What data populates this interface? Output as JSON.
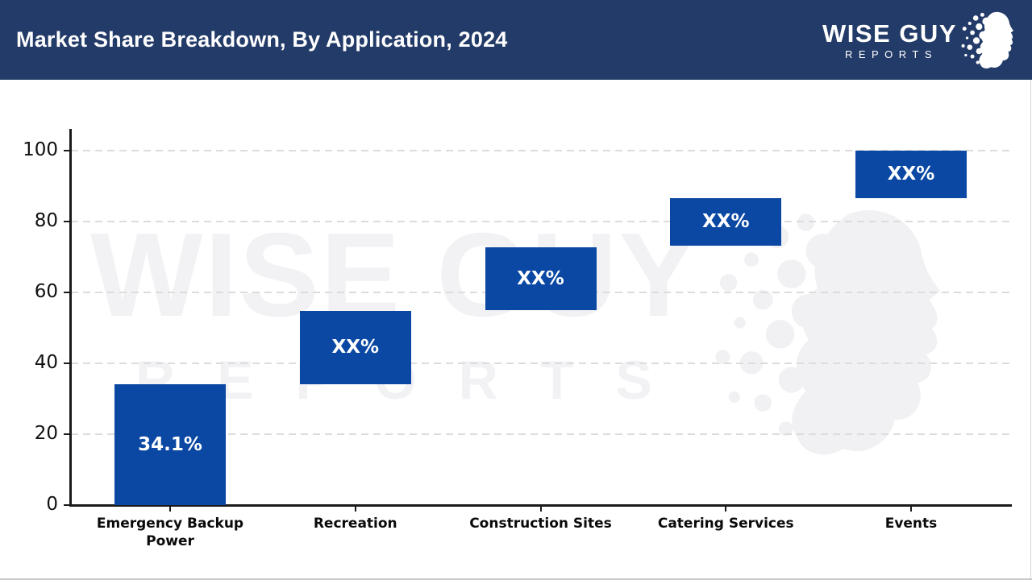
{
  "header": {
    "title": "Market Share Breakdown, By Application, 2024",
    "bg_color": "#233B68",
    "logo": {
      "line1": "WISE GUY",
      "line2": "REPORTS"
    }
  },
  "watermark": {
    "line1": "WISE GUY",
    "line2": "REPORTS"
  },
  "chart_data": {
    "type": "bar",
    "subtype": "waterfall",
    "title": "Market Share Breakdown, By Application, 2024",
    "categories": [
      "Emergency Backup Power",
      "Recreation",
      "Construction Sites",
      "Catering Services",
      "Events"
    ],
    "segments": [
      {
        "category": "Emergency Backup Power",
        "start": 0,
        "end": 34.1,
        "value": 34.1,
        "label": "34.1%"
      },
      {
        "category": "Recreation",
        "start": 34.1,
        "end": 54.8,
        "value": 20.7,
        "label": "XX%"
      },
      {
        "category": "Construction Sites",
        "start": 55.0,
        "end": 72.7,
        "value": 17.7,
        "label": "XX%"
      },
      {
        "category": "Catering Services",
        "start": 73.2,
        "end": 86.6,
        "value": 13.4,
        "label": "XX%"
      },
      {
        "category": "Events",
        "start": 86.6,
        "end": 100,
        "value": 13.4,
        "label": "XX%"
      }
    ],
    "yticks": [
      0,
      20,
      40,
      60,
      80,
      100
    ],
    "ylim": [
      0,
      106
    ],
    "xlabel": "",
    "ylabel": "",
    "bar_color": "#0A48A3",
    "grid": "horizontal-dashed",
    "legend": "none"
  }
}
